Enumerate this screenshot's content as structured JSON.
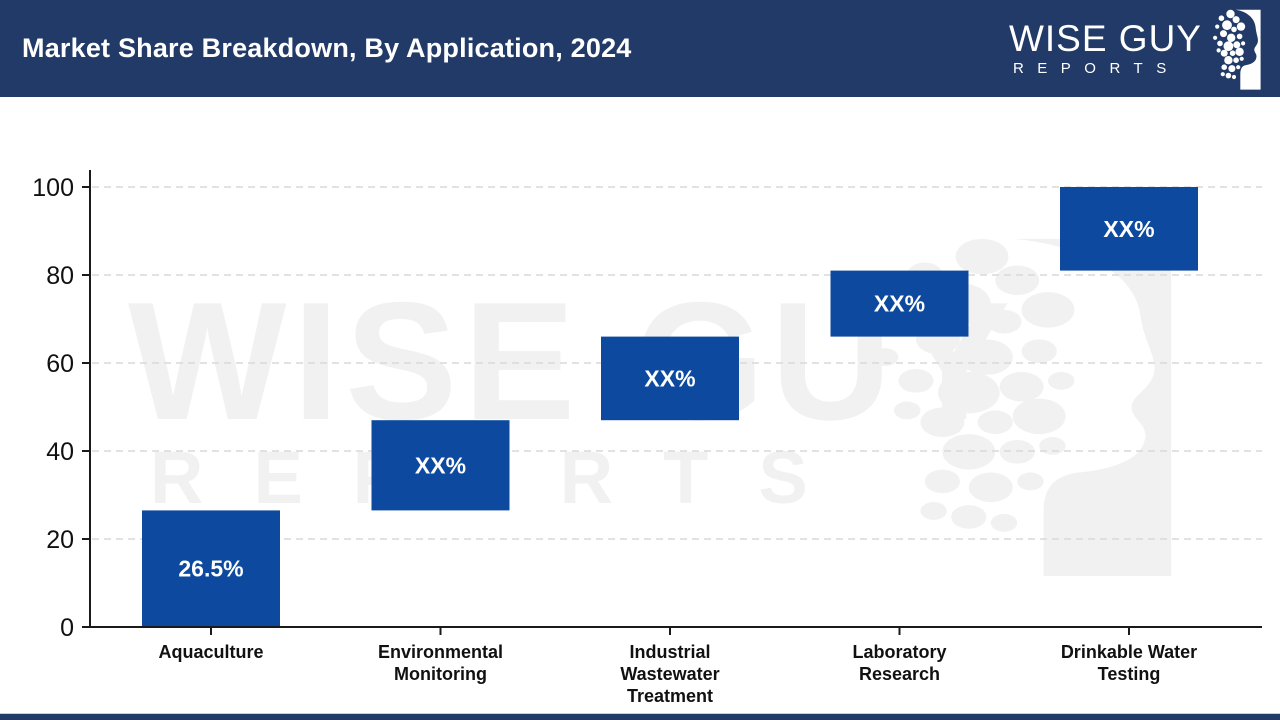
{
  "header": {
    "title": "Market Share Breakdown, By Application, 2024",
    "logo": {
      "name": "WISE GUY",
      "tagline": "REPORTS"
    }
  },
  "watermark": {
    "name": "WISE GUY",
    "tagline": "REPORTS"
  },
  "colors": {
    "header_bg": "#213a67",
    "footer_bg": "#213a67",
    "bar_fill": "#0d4a9f",
    "bar_label": "#ffffff",
    "axis": "#1a1a1a",
    "grid": "#d9d9d9",
    "tick_label": "#111111",
    "watermark_gray": "#f1f1f1"
  },
  "chart_data": {
    "type": "bar",
    "subtype": "waterfall",
    "title": "Market Share Breakdown, By Application, 2024",
    "categories": [
      "Aquaculture",
      "Environmental\nMonitoring",
      "Industrial\nWastewater\nTreatment",
      "Laboratory\nResearch",
      "Drinkable Water\nTesting"
    ],
    "bars": [
      {
        "category": "Aquaculture",
        "start": 0,
        "end": 26.5,
        "value": 26.5,
        "label": "26.5%"
      },
      {
        "category": "Environmental Monitoring",
        "start": 26.5,
        "end": 47,
        "value": 20.5,
        "label": "XX%"
      },
      {
        "category": "Industrial Wastewater Treatment",
        "start": 47,
        "end": 66,
        "value": 19,
        "label": "XX%"
      },
      {
        "category": "Laboratory Research",
        "start": 66,
        "end": 81,
        "value": 15,
        "label": "XX%"
      },
      {
        "category": "Drinkable Water Testing",
        "start": 81,
        "end": 100,
        "value": 19,
        "label": "XX%"
      }
    ],
    "y_ticks": [
      0,
      20,
      40,
      60,
      80,
      100
    ],
    "ylim": [
      0,
      104
    ],
    "grid": "horizontal-dashed",
    "legend": "none"
  }
}
